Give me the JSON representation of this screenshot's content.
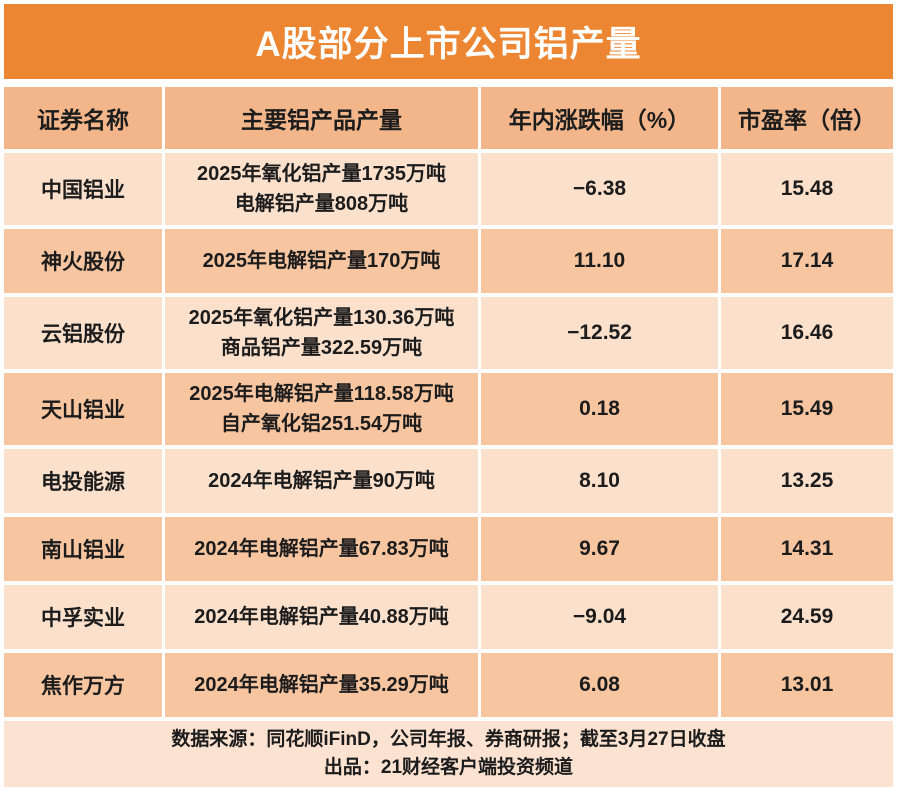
{
  "title": "A股部分上市公司铝产量",
  "table": {
    "headers": [
      "证券名称",
      "主要铝产品产量",
      "年内涨跌幅（%）",
      "市盈率（倍）"
    ],
    "rows": [
      {
        "name": "中国铝业",
        "product_lines": [
          "2025年氧化铝产量1735万吨",
          "电解铝产量808万吨"
        ],
        "change": "−6.38",
        "pe": "15.48"
      },
      {
        "name": "神火股份",
        "product_lines": [
          "2025年电解铝产量170万吨"
        ],
        "change": "11.10",
        "pe": "17.14"
      },
      {
        "name": "云铝股份",
        "product_lines": [
          "2025年氧化铝产量130.36万吨",
          "商品铝产量322.59万吨"
        ],
        "change": "−12.52",
        "pe": "16.46"
      },
      {
        "name": "天山铝业",
        "product_lines": [
          "2025年电解铝产量118.58万吨",
          "自产氧化铝251.54万吨"
        ],
        "change": "0.18",
        "pe": "15.49"
      },
      {
        "name": "电投能源",
        "product_lines": [
          "2024年电解铝产量90万吨"
        ],
        "change": "8.10",
        "pe": "13.25"
      },
      {
        "name": "南山铝业",
        "product_lines": [
          "2024年电解铝产量67.83万吨"
        ],
        "change": "9.67",
        "pe": "14.31"
      },
      {
        "name": "中孚实业",
        "product_lines": [
          "2024年电解铝产量40.88万吨"
        ],
        "change": "−9.04",
        "pe": "24.59"
      },
      {
        "name": "焦作万方",
        "product_lines": [
          "2024年电解铝产量35.29万吨"
        ],
        "change": "6.08",
        "pe": "13.01"
      }
    ]
  },
  "footer": {
    "line1": "数据来源：同花顺iFinD，公司年报、券商研报；截至3月27日收盘",
    "line2": "出品：21财经客户端投资频道"
  },
  "colors": {
    "banner_orange": "#ED8632",
    "header_peach": "#F3B68A",
    "row_light": "#FBE0CC",
    "row_medium": "#F7C5A0",
    "footer_peach": "#FCE2D0",
    "text": "#1C1C1C",
    "divider_white": "#FFFFFF"
  },
  "chart_data": {
    "type": "table",
    "title": "A股部分上市公司铝产量",
    "columns": [
      "证券名称",
      "主要铝产品产量",
      "年内涨跌幅（%）",
      "市盈率（倍）"
    ],
    "rows": [
      [
        "中国铝业",
        "2025年氧化铝产量1735万吨 电解铝产量808万吨",
        -6.38,
        15.48
      ],
      [
        "神火股份",
        "2025年电解铝产量170万吨",
        11.1,
        17.14
      ],
      [
        "云铝股份",
        "2025年氧化铝产量130.36万吨 商品铝产量322.59万吨",
        -12.52,
        16.46
      ],
      [
        "天山铝业",
        "2025年电解铝产量118.58万吨 自产氧化铝251.54万吨",
        0.18,
        15.49
      ],
      [
        "电投能源",
        "2024年电解铝产量90万吨",
        8.1,
        13.25
      ],
      [
        "南山铝业",
        "2024年电解铝产量67.83万吨",
        9.67,
        14.31
      ],
      [
        "中孚实业",
        "2024年电解铝产量40.88万吨",
        -9.04,
        24.59
      ],
      [
        "焦作万方",
        "2024年电解铝产量35.29万吨",
        6.08,
        13.01
      ]
    ],
    "source_note": "数据来源：同花顺iFinD，公司年报、券商研报；截至3月27日收盘",
    "producer_note": "出品：21财经客户端投资频道"
  }
}
